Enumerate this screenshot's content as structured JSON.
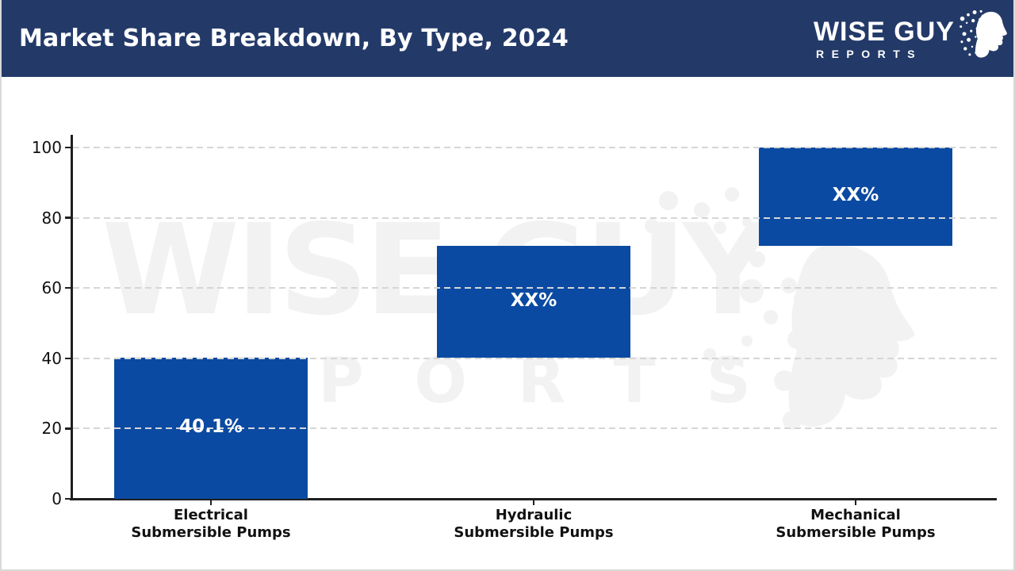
{
  "header": {
    "title": "Market Share Breakdown, By Type, 2024",
    "logo": {
      "line1": "WISE GUY",
      "line2": "REPORTS"
    }
  },
  "watermark": {
    "line1": "WISE GUY",
    "line2": "REPORTS"
  },
  "chart_data": {
    "type": "bar",
    "variant": "floating-waterfall",
    "title": "Market Share Breakdown, By Type, 2024",
    "categories": [
      "Electrical\nSubmersible Pumps",
      "Hydraulic\nSubmersible Pumps",
      "Mechanical\nSubmersible Pumps"
    ],
    "bars": [
      {
        "category": "Electrical Submersible Pumps",
        "start": 0,
        "end": 40.1,
        "label": "40.1%"
      },
      {
        "category": "Hydraulic Submersible Pumps",
        "start": 40.1,
        "end": 72,
        "label": "XX%"
      },
      {
        "category": "Mechanical Submersible Pumps",
        "start": 72,
        "end": 100,
        "label": "XX%"
      }
    ],
    "ylim": [
      0,
      100
    ],
    "yticks": [
      0,
      20,
      40,
      60,
      80,
      100
    ],
    "xlabel": "",
    "ylabel": "",
    "grid": {
      "axis": "y",
      "style": "dashed"
    },
    "legend": "none",
    "bar_color": "#0b4aa2",
    "bar_label_color": "#ffffff"
  },
  "colors": {
    "header_bg": "#233a69",
    "bar_blue": "#0b4aa2",
    "axis": "#1f1f1f",
    "grid_line": "#d6d6d6",
    "watermark": "#f2f2f2",
    "page_border": "#d9d9d9"
  }
}
